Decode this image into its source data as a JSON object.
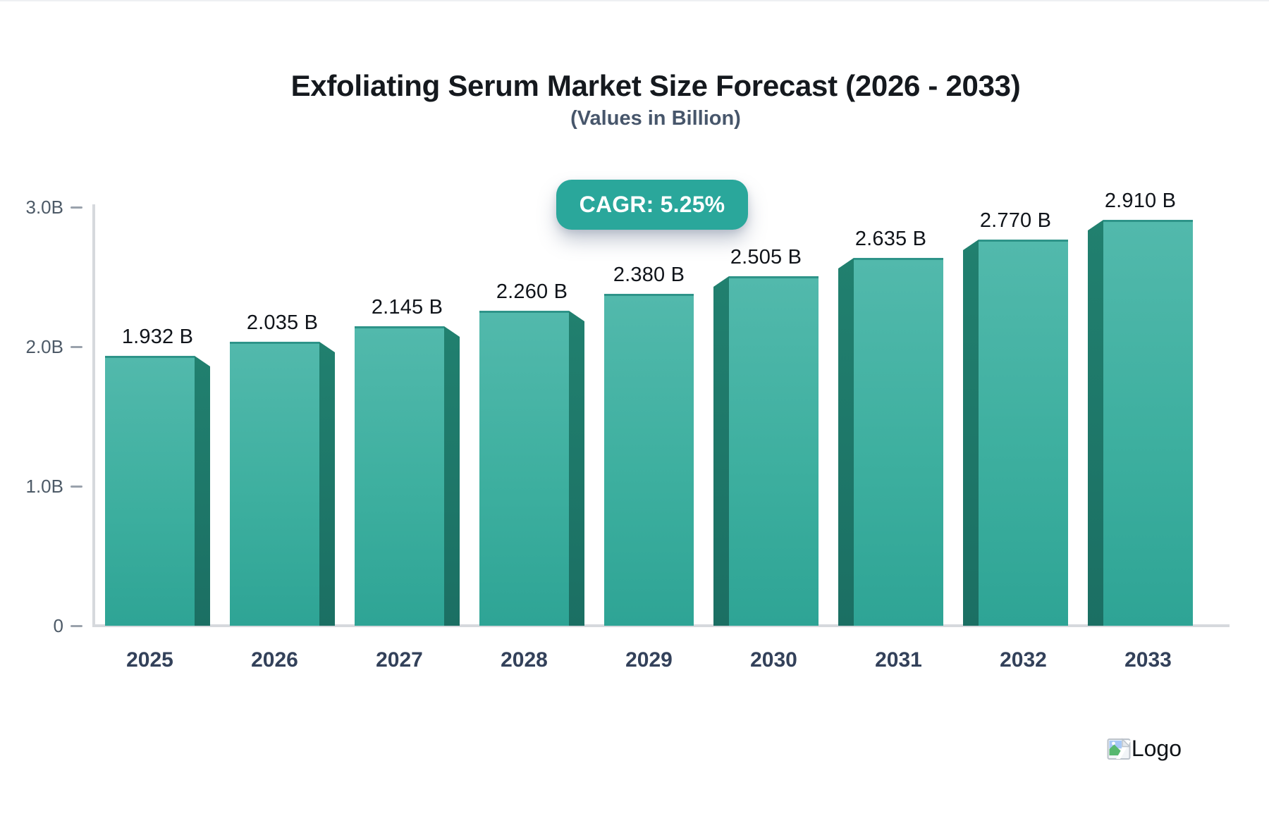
{
  "header": {
    "title": "Exfoliating Serum Market Size Forecast (2026 - 2033)",
    "subtitle": "(Values in Billion)",
    "cagr_label": "CAGR: 5.25%"
  },
  "footer": {
    "logo_text": "Logo"
  },
  "colors": {
    "accent": "#2aa79b",
    "bar_face_top": "#52b9ac",
    "bar_face_bottom": "#2ea495",
    "bar_side": "#21806f",
    "axis_line": "#d6d9dd",
    "tick_text": "#4d5a67",
    "x_label": "#33415a",
    "value_label": "#10141a"
  },
  "chart_data": {
    "type": "bar",
    "title": "Exfoliating Serum Market Size Forecast (2026 - 2033)",
    "subtitle": "(Values in Billion)",
    "annotation": "CAGR: 5.25%",
    "categories": [
      "2025",
      "2026",
      "2027",
      "2028",
      "2029",
      "2030",
      "2031",
      "2032",
      "2033"
    ],
    "values": [
      1.932,
      2.035,
      2.145,
      2.26,
      2.38,
      2.505,
      2.635,
      2.77,
      2.91
    ],
    "value_labels": [
      "1.932 B",
      "2.035 B",
      "2.145 B",
      "2.260 B",
      "2.380 B",
      "2.505 B",
      "2.635 B",
      "2.770 B",
      "2.910 B"
    ],
    "unit": "Billion",
    "xlabel": "",
    "ylabel": "",
    "ylim": [
      0,
      3.0
    ],
    "y_tick_values": [
      0,
      1.0,
      2.0,
      3.0
    ],
    "y_tick_labels": [
      "0",
      "1.0B",
      "2.0B",
      "3.0B"
    ],
    "grid": false,
    "legend": false,
    "bar_style": "3d-beveled, perspective toward center (left bars shaded right, right bars shaded left)"
  }
}
